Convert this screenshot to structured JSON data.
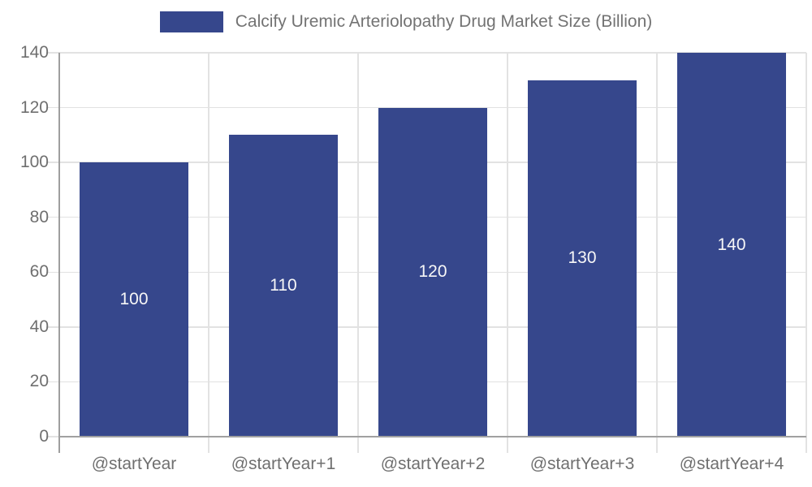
{
  "chart_data": {
    "type": "bar",
    "title": "Calcify Uremic Arteriolopathy Drug Market Size (Billion)",
    "legend": {
      "position": "top",
      "entries": [
        "Calcify Uremic Arteriolopathy Drug Market Size (Billion)"
      ]
    },
    "categories": [
      "@startYear",
      "@startYear+1",
      "@startYear+2",
      "@startYear+3",
      "@startYear+4"
    ],
    "series": [
      {
        "name": "Calcify Uremic Arteriolopathy Drug Market Size (Billion)",
        "values": [
          100,
          110,
          120,
          130,
          140
        ]
      }
    ],
    "value_labels": [
      "100",
      "110",
      "120",
      "130",
      "140"
    ],
    "xlabel": "",
    "ylabel": "",
    "ylim": [
      0,
      140
    ],
    "yticks": [
      0,
      20,
      40,
      60,
      80,
      100,
      120,
      140
    ],
    "grid": true,
    "colors": {
      "bar": "#36478c",
      "value_label": "#f7f7f7",
      "axis_text": "#6f6f6f",
      "legend_text": "#737373",
      "gridline": "#e2e2e2",
      "axis_line": "#9e9e9e",
      "baseline": "#a1a1a1",
      "background": "#ffffff"
    }
  }
}
